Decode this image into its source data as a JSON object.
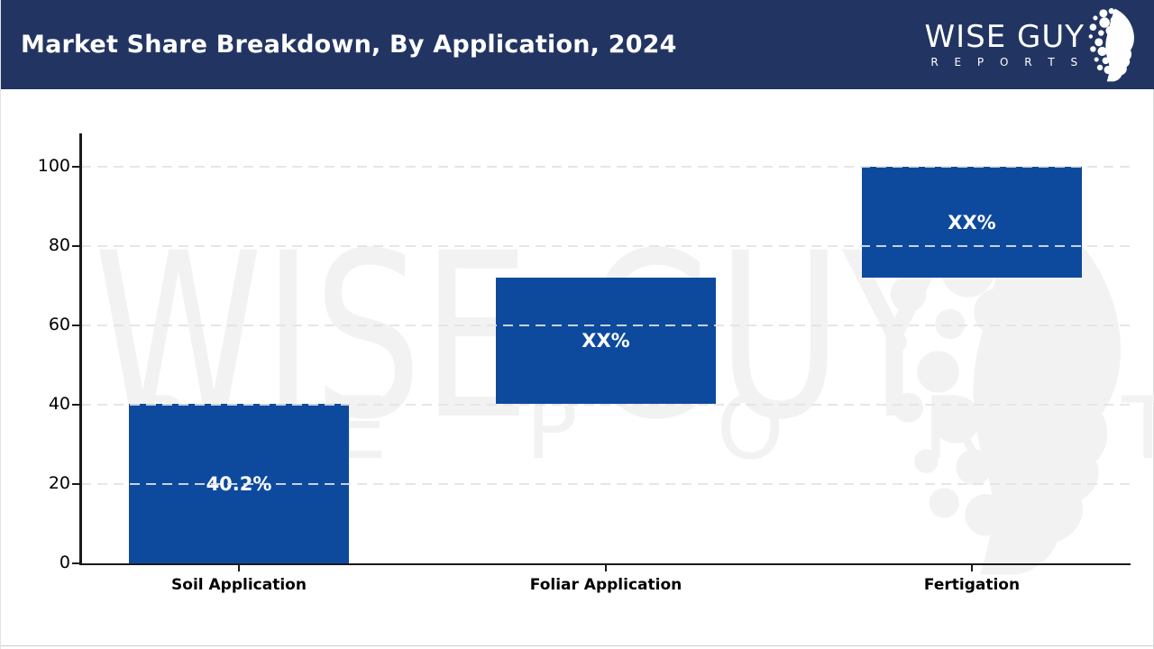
{
  "header": {
    "title": "Market Share Breakdown, By Application, 2024",
    "bg_color": "#223562",
    "logo": {
      "line1": "WISE GUY",
      "line2": "R E P O R T S"
    }
  },
  "watermark": {
    "line1": "WISE GUY",
    "line2": "R E P O R T S"
  },
  "chart_data": {
    "type": "bar",
    "subtype": "stacked-waterfall-segments",
    "title": "Market Share Breakdown, By Application, 2024",
    "categories": [
      "Soil Application",
      "Foliar Application",
      "Fertigation"
    ],
    "bars": [
      {
        "category": "Soil Application",
        "start": 0,
        "end": 40.2,
        "label": "40.2%"
      },
      {
        "category": "Foliar Application",
        "start": 40.2,
        "end": 72,
        "label": "XX%"
      },
      {
        "category": "Fertigation",
        "start": 72,
        "end": 100,
        "label": "XX%"
      }
    ],
    "ylim": [
      0,
      100
    ],
    "yticks": [
      0,
      20,
      40,
      60,
      80,
      100
    ],
    "grid": "horizontal dashed, drawn over bars",
    "legend": "none",
    "bar_color": "#0d4a9e",
    "value_label_color": "#ffffff",
    "gridline_color": "#e3e3e3",
    "axis_color": "#1a1a1a"
  },
  "colors": {
    "header_bg": "#223562",
    "bar": "#0d4a9e",
    "watermark": "#f2f2f2"
  }
}
